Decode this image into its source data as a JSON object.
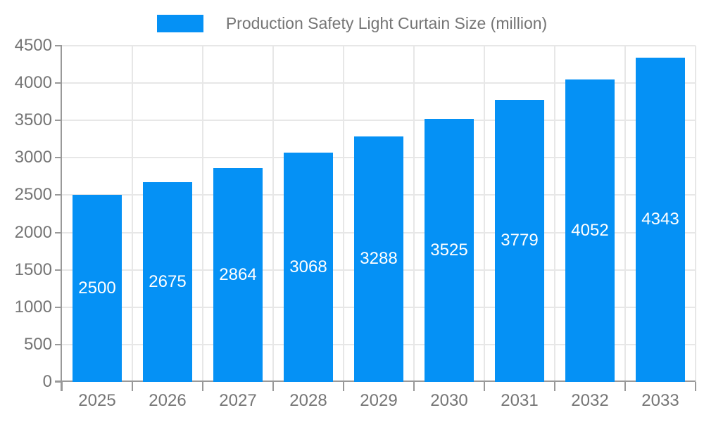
{
  "legend": {
    "label": "Production Safety Light Curtain Size (million)"
  },
  "colors": {
    "bar": "#0591f5",
    "grid": "#e7e7e7",
    "axis": "#999999",
    "tick_text": "#757575",
    "legend_text": "#757575",
    "value_text": "#ffffff",
    "background": "#ffffff"
  },
  "chart_data": {
    "type": "bar",
    "title": "Production Safety Light Curtain Size (million)",
    "categories": [
      "2025",
      "2026",
      "2027",
      "2028",
      "2029",
      "2030",
      "2031",
      "2032",
      "2033"
    ],
    "values": [
      2500,
      2675,
      2864,
      3068,
      3288,
      3525,
      3779,
      4052,
      4343
    ],
    "bar_value_labels": [
      "2500",
      "2675",
      "2864",
      "3068",
      "3288",
      "3525",
      "3779",
      "4052",
      "4343"
    ],
    "xlabel": "",
    "ylabel": "",
    "ylim": [
      0,
      4500
    ],
    "ytick_step": 500,
    "yticks": [
      "0",
      "500",
      "1000",
      "1500",
      "2000",
      "2500",
      "3000",
      "3500",
      "4000",
      "4500"
    ],
    "grid": true,
    "legend_position": "top",
    "value_label_position": "inside-center"
  }
}
